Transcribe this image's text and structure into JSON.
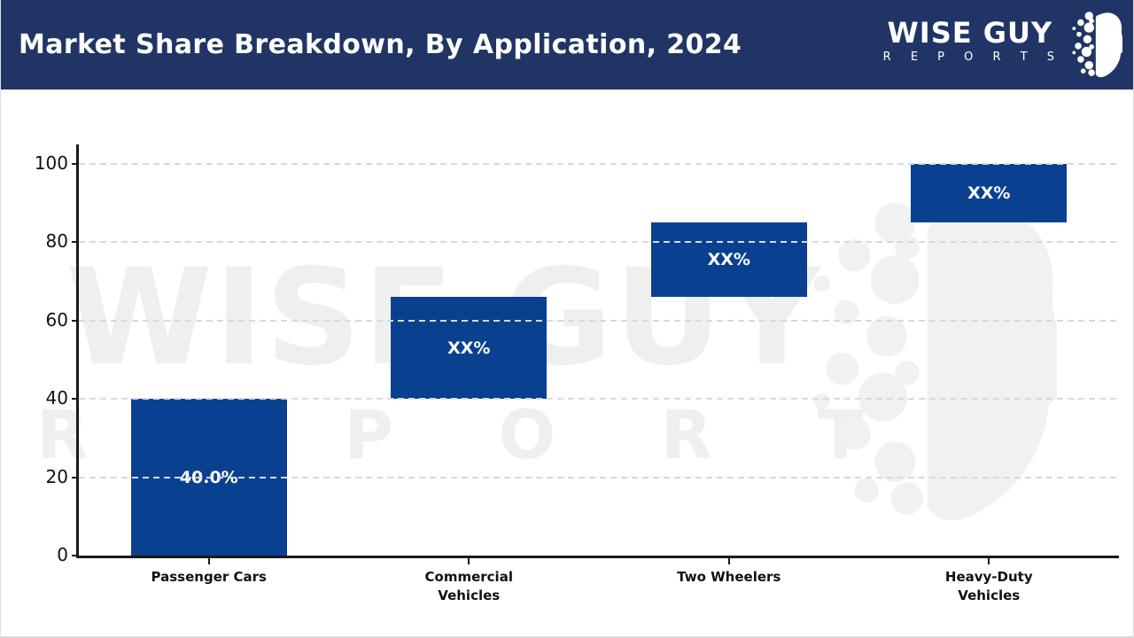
{
  "header": {
    "title": "Market Share Breakdown, By Application, 2024",
    "bg_color": "#203565",
    "logo": {
      "line1": "WISE GUY",
      "line2": "R E P O R T S"
    }
  },
  "watermark": {
    "line1": "WISE GUY",
    "line2": "R E P O R T S"
  },
  "chart_data": {
    "type": "bar",
    "variant": "waterfall-floating-segments",
    "title": "Market Share Breakdown, By Application, 2024",
    "categories": [
      "Passenger Cars",
      "Commercial\nVehicles",
      "Two Wheelers",
      "Heavy-Duty\nVehicles"
    ],
    "segments": [
      {
        "category": "Passenger Cars",
        "start": 0,
        "end": 40,
        "label": "40.0%"
      },
      {
        "category": "Commercial Vehicles",
        "start": 40,
        "end": 66,
        "label": "XX%"
      },
      {
        "category": "Two Wheelers",
        "start": 66,
        "end": 85,
        "label": "XX%"
      },
      {
        "category": "Heavy-Duty Vehicles",
        "start": 85,
        "end": 100,
        "label": "XX%"
      }
    ],
    "xlabel": "",
    "ylabel": "",
    "ylim": [
      0,
      105
    ],
    "yticks": [
      0,
      20,
      40,
      60,
      80,
      100
    ],
    "grid": "horizontal-dashed",
    "legend": "none",
    "bar_color": "#094190",
    "bar_label_color": "#ffffff",
    "axis_color": "#1a1a1a",
    "gridline_color": "#d9d9d9"
  }
}
